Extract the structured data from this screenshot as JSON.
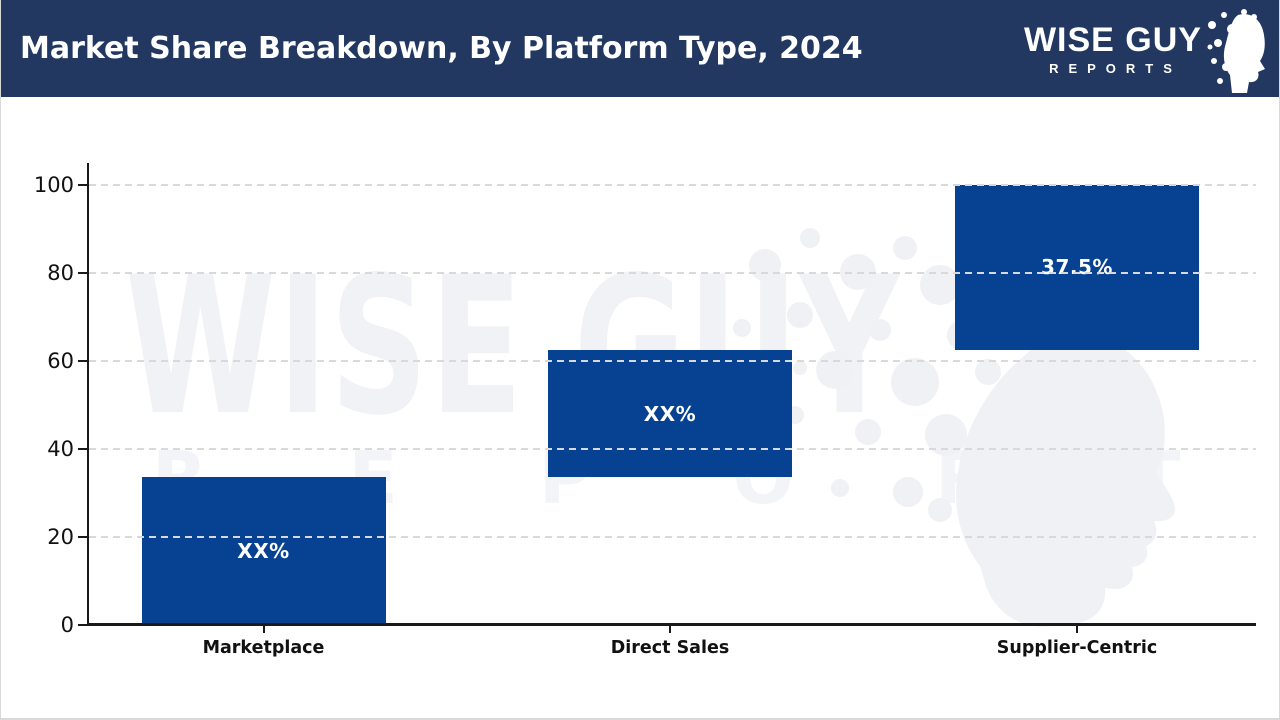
{
  "header": {
    "title": "Market Share Breakdown, By Platform Type, 2024",
    "logo": {
      "line1": "WISE GUY",
      "line2": "REPORTS"
    }
  },
  "watermark": {
    "line1": "WISE GUY",
    "line2": "R E P O R T S"
  },
  "chart_data": {
    "type": "bar",
    "subtype": "waterfall",
    "title": "Market Share Breakdown, By Platform Type, 2024",
    "categories": [
      "Marketplace",
      "Direct Sales",
      "Supplier-Centric"
    ],
    "segments": [
      {
        "category": "Marketplace",
        "from": 0,
        "to": 33.5,
        "label": "XX%"
      },
      {
        "category": "Direct Sales",
        "from": 33.5,
        "to": 62.5,
        "label": "XX%"
      },
      {
        "category": "Supplier-Centric",
        "from": 62.5,
        "to": 100,
        "label": "37.5%"
      }
    ],
    "ylim": [
      0,
      100
    ],
    "yticks": [
      0,
      20,
      40,
      60,
      80,
      100
    ],
    "grid": "horizontal-dashed",
    "legend": "none",
    "bar_color": "#074292",
    "bar_label_color": "#ffffff",
    "grid_color": "#d9d9d9",
    "header_bg": "#223861"
  }
}
